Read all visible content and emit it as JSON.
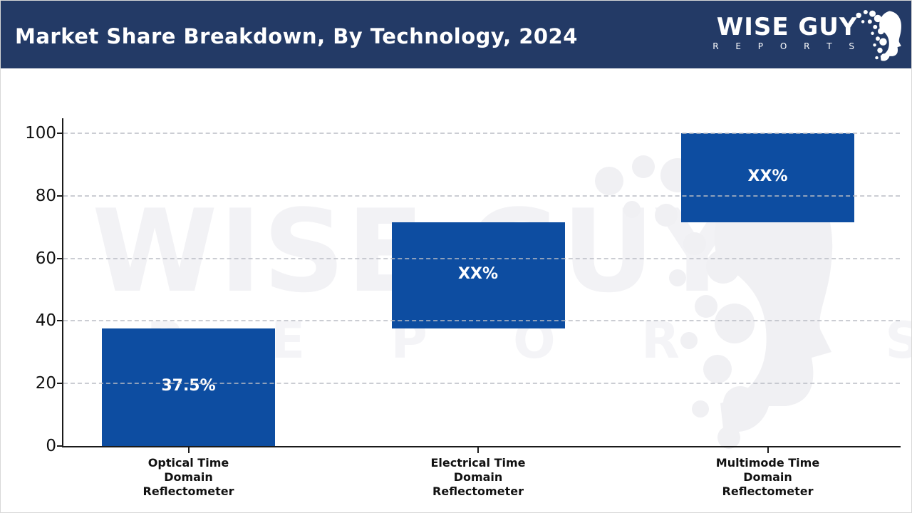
{
  "header": {
    "title": "Market Share Breakdown, By Technology, 2024",
    "logo": {
      "name": "WISE GUY",
      "sub": "R E P O R T S"
    }
  },
  "watermark": {
    "line1": "WISE GUY",
    "line2": "R E P O R T S"
  },
  "colors": {
    "header_bg": "#233a66",
    "bar": "#0d4da1",
    "bar_label": "#ffffff",
    "grid": "#d9d9d9",
    "axis": "#1a1a1a",
    "watermark": "#f2f2f5"
  },
  "chart_data": {
    "type": "bar",
    "subtype": "floating-stacked-segments",
    "title": "Market Share Breakdown, By Technology, 2024",
    "xlabel": "",
    "ylabel": "",
    "ylim": [
      0,
      100
    ],
    "yticks": [
      0,
      20,
      40,
      60,
      80,
      100
    ],
    "grid": "horizontal-dashed",
    "legend": "none",
    "categories": [
      "Optical Time Domain Reflectometer",
      "Electrical Time Domain Reflectometer",
      "Multimode Time Domain Reflectometer"
    ],
    "bars": [
      {
        "category_lines": [
          "Optical Time",
          "Domain",
          "Reflectometer"
        ],
        "start": 0,
        "end": 37.5,
        "label": "37.5%"
      },
      {
        "category_lines": [
          "Electrical Time",
          "Domain",
          "Reflectometer"
        ],
        "start": 37.5,
        "end": 71.5,
        "label": "XX%"
      },
      {
        "category_lines": [
          "Multimode Time",
          "Domain",
          "Reflectometer"
        ],
        "start": 71.5,
        "end": 100,
        "label": "XX%"
      }
    ]
  }
}
